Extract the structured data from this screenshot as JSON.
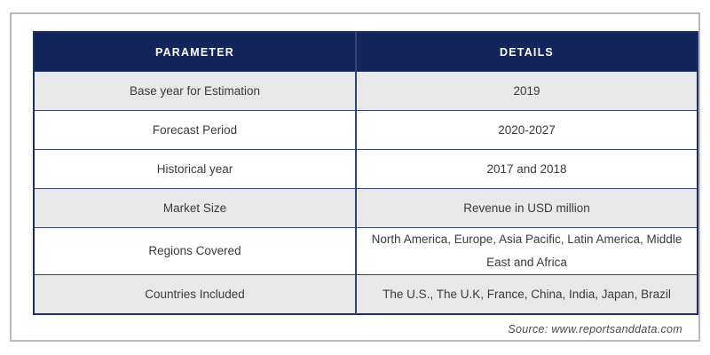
{
  "table": {
    "columns": [
      "PARAMETER",
      "DETAILS"
    ],
    "rows": [
      {
        "parameter": "Base year for Estimation",
        "details": "2019",
        "shaded": true
      },
      {
        "parameter": "Forecast Period",
        "details": "2020-2027",
        "shaded": false
      },
      {
        "parameter": "Historical year",
        "details": "2017 and 2018",
        "shaded": false
      },
      {
        "parameter": "Market Size",
        "details": "Revenue in USD million",
        "shaded": true
      },
      {
        "parameter": "Regions Covered",
        "details": "North America, Europe, Asia Pacific, Latin America, Middle East and Africa",
        "shaded": false
      },
      {
        "parameter": "Countries Included",
        "details": "The U.S., The  U.K, France, China, India, Japan, Brazil",
        "shaded": true
      }
    ]
  },
  "source": "Source: www.reportsanddata.com",
  "colors": {
    "header_bg": "#12265c",
    "shaded_row_bg": "#e8e8e8",
    "table_border": "#1d2f66",
    "card_border": "#b9b9b9",
    "body_text": "#3b3b3b",
    "source_text": "#4a4a4a"
  }
}
